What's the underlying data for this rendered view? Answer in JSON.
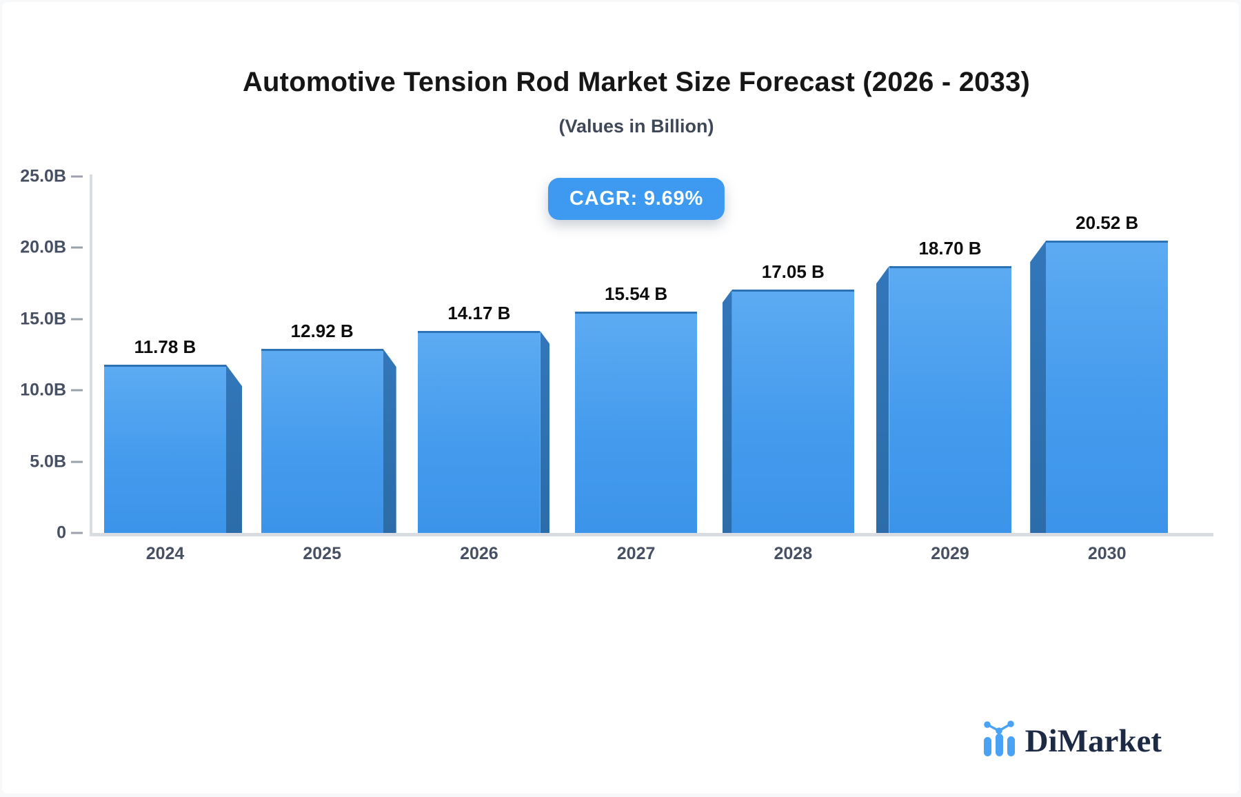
{
  "chart_data": {
    "type": "bar",
    "title": "Automotive Tension Rod Market Size Forecast (2026 - 2033)",
    "subtitle": "(Values in Billion)",
    "cagr_badge": "CAGR: 9.69%",
    "cagr_value": "9.69%",
    "categories": [
      "2024",
      "2025",
      "2026",
      "2027",
      "2028",
      "2029",
      "2030"
    ],
    "values": [
      11.78,
      12.92,
      14.17,
      15.54,
      17.05,
      18.7,
      20.52
    ],
    "value_labels": [
      "11.78 B",
      "12.92 B",
      "14.17 B",
      "15.54 B",
      "17.05 B",
      "18.70 B",
      "20.52 B"
    ],
    "unit": "Billion",
    "ylim": [
      0,
      25
    ],
    "yticks": [
      "25.0B",
      "20.0B",
      "15.0B",
      "10.0B",
      "5.0B",
      "0"
    ],
    "grid": "off",
    "legend": "none",
    "colors": {
      "bar_face": "#459bed",
      "bar_side": "#2e74b4",
      "badge_background": "#3d9af0",
      "axis_line": "#d9dde2",
      "tick_label": "#475063",
      "value_label": "#0d0d0d"
    }
  },
  "branding": {
    "name": "DiMarket",
    "icon": "bar-line-chart-icon",
    "icon_color": "#4aa2f5",
    "text_color": "#1c2a44"
  }
}
